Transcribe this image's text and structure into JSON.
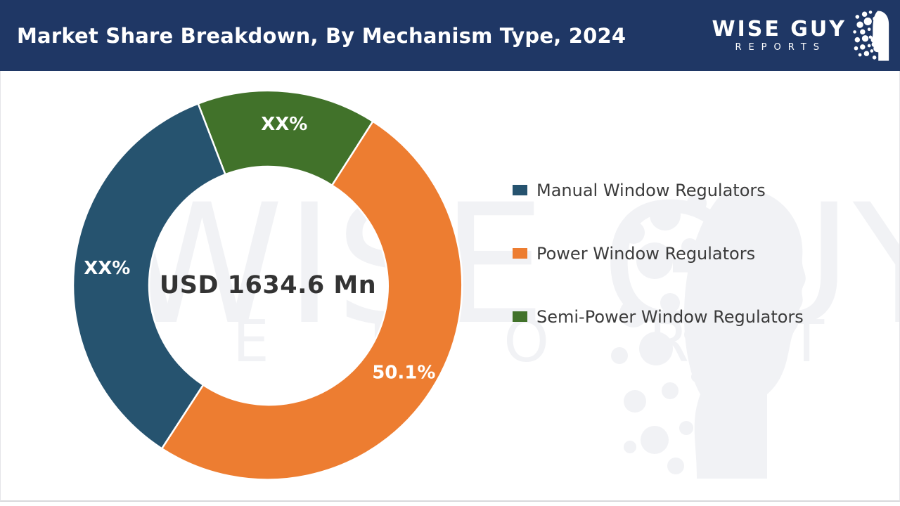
{
  "header": {
    "title": "Market Share Breakdown, By Mechanism Type, 2024",
    "bg_color": "#1F3765",
    "logo": {
      "name": "WISE GUY",
      "tagline": "REPORTS",
      "face_icon": "face-profile-dots-icon"
    }
  },
  "watermark": {
    "line1": "WISE GUY",
    "line2": "E P O R T S"
  },
  "chart_data": {
    "type": "pie",
    "subtype": "donut",
    "title": "Market Share Breakdown, By Mechanism Type, 2024",
    "center_label": "USD 1634.6 Mn",
    "donut_hole_ratio": 0.61,
    "start_angle_deg_from_top": -21,
    "direction": "clockwise",
    "legend_position": "right",
    "categories": [
      "Manual Window Regulators",
      "Power Window Regulators",
      "Semi-Power Window Regulators"
    ],
    "slices": [
      {
        "name": "Semi-Power Window Regulators",
        "value_pct": 14.9,
        "displayed_label": "XX%",
        "color": "#41722A"
      },
      {
        "name": "Power Window Regulators",
        "value_pct": 50.1,
        "displayed_label": "50.1%",
        "color": "#ED7D31"
      },
      {
        "name": "Manual Window Regulators",
        "value_pct": 35.0,
        "displayed_label": "XX%",
        "color": "#26536F"
      }
    ],
    "legend": [
      {
        "label": "Manual Window Regulators",
        "color": "#26536F"
      },
      {
        "label": "Power Window Regulators",
        "color": "#ED7D31"
      },
      {
        "label": "Semi-Power Window Regulators",
        "color": "#41722A"
      }
    ]
  }
}
